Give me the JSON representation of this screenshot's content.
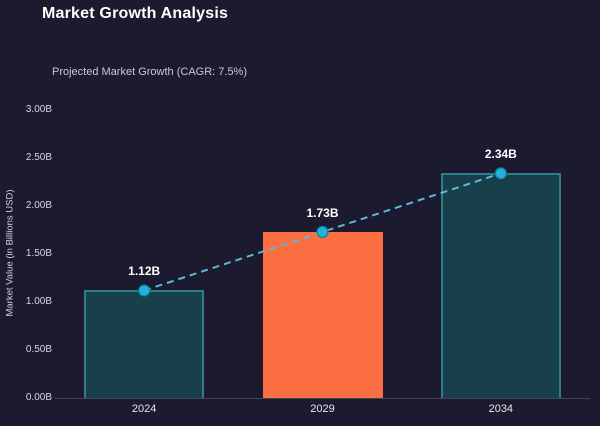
{
  "header": {
    "title": "Market Growth Analysis",
    "subtitle": "Projected Market Growth (CAGR: 7.5%)"
  },
  "chart_data": {
    "type": "bar",
    "title": "Market Growth Analysis",
    "subtitle": "Projected Market Growth (CAGR: 7.5%)",
    "categories": [
      "2024",
      "2029",
      "2034"
    ],
    "values": [
      1.12,
      1.73,
      2.34
    ],
    "value_labels": [
      "1.12B",
      "1.73B",
      "2.34B"
    ],
    "ylabel": "Market Value (in Billions USD)",
    "ylim": [
      0,
      3
    ],
    "ytick_step": 0.5,
    "ytick_labels": [
      "0.00B",
      "0.50B",
      "1.00B",
      "1.50B",
      "2.00B",
      "2.50B",
      "3.00B"
    ],
    "grid": false,
    "legend": false,
    "overlay_line": {
      "style": "dashed",
      "values": [
        1.12,
        1.73,
        2.34
      ]
    },
    "colors": {
      "background": "#1c1a2e",
      "bar_fills": [
        "#17404b",
        "#fb6e42",
        "#17404b"
      ],
      "bar_borders": [
        "#2f7c8e",
        "#fb6e42",
        "#2f7c8e"
      ],
      "line": "#5cb8da",
      "marker": "#23b2d8",
      "marker_edge": "#0e7fa3",
      "label_text": "#ffffff",
      "tick_text": "#d6d6de"
    }
  }
}
